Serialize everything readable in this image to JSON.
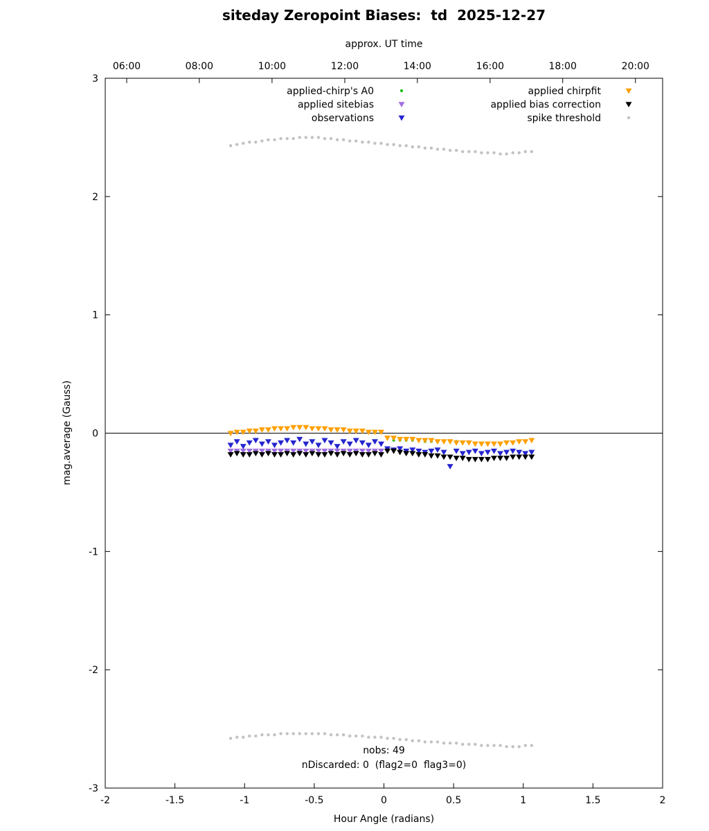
{
  "chart_data": {
    "type": "scatter",
    "title": "siteday Zeropoint Biases:  td  2025-12-27",
    "xlabel": "Hour Angle (radians)",
    "ylabel": "mag.average (Gauss)",
    "top_axis_label": "approx. UT time",
    "xlim": [
      -2,
      2
    ],
    "ylim": [
      -3,
      3
    ],
    "grid": false,
    "legend_position": "top-inside-two-columns",
    "zero_line": 0,
    "annotations": {
      "nobs": "nobs: 49",
      "ndiscarded": "nDiscarded: 0  (flag2=0  flag3=0)"
    },
    "x_ticks": [
      {
        "v": -2,
        "label": "-2"
      },
      {
        "v": -1.5,
        "label": "-1.5"
      },
      {
        "v": -1,
        "label": "-1"
      },
      {
        "v": -0.5,
        "label": "-0.5"
      },
      {
        "v": 0,
        "label": "0"
      },
      {
        "v": 0.5,
        "label": "0.5"
      },
      {
        "v": 1,
        "label": "1"
      },
      {
        "v": 1.5,
        "label": "1.5"
      },
      {
        "v": 2,
        "label": "2"
      }
    ],
    "y_ticks": [
      {
        "v": 3,
        "label": "3"
      },
      {
        "v": 2,
        "label": "2"
      },
      {
        "v": 1,
        "label": "1"
      },
      {
        "v": 0,
        "label": "0"
      },
      {
        "v": -1,
        "label": "-1"
      },
      {
        "v": -2,
        "label": "-2"
      },
      {
        "v": -3,
        "label": "-3"
      }
    ],
    "top_ticks": [
      {
        "v": -1.846,
        "label": "06:00"
      },
      {
        "v": -1.325,
        "label": "08:00"
      },
      {
        "v": -0.803,
        "label": "10:00"
      },
      {
        "v": -0.281,
        "label": "12:00"
      },
      {
        "v": 0.24,
        "label": "14:00"
      },
      {
        "v": 0.762,
        "label": "16:00"
      },
      {
        "v": 1.283,
        "label": "18:00"
      },
      {
        "v": 1.805,
        "label": "20:00"
      }
    ],
    "series": [
      {
        "name": "applied-chirp's A0",
        "marker": "dot",
        "dot_r": 2,
        "color": "#00bb00",
        "legend_col": 0,
        "legend_row": 0,
        "x": [
          0.07,
          0.115,
          0.16,
          0.205,
          0.25,
          0.295,
          0.34,
          0.385,
          0.43,
          0.475,
          0.52
        ],
        "y": [
          -0.06,
          -0.06,
          -0.06,
          -0.06,
          -0.06,
          -0.07,
          -0.07,
          -0.07,
          -0.07,
          -0.07,
          -0.07
        ]
      },
      {
        "name": "applied sitebias",
        "marker": "triangle",
        "color": "#9f6fe0",
        "legend_col": 0,
        "legend_row": 1,
        "x": [
          -1.1,
          -1.055,
          -1.01,
          -0.965,
          -0.92,
          -0.875,
          -0.83,
          -0.785,
          -0.74,
          -0.695,
          -0.65,
          -0.605,
          -0.56,
          -0.515,
          -0.47,
          -0.425,
          -0.38,
          -0.335,
          -0.29,
          -0.245,
          -0.2,
          -0.155,
          -0.11,
          -0.065,
          -0.02
        ],
        "y": [
          -0.15,
          -0.15,
          -0.15,
          -0.15,
          -0.15,
          -0.15,
          -0.15,
          -0.15,
          -0.15,
          -0.15,
          -0.15,
          -0.15,
          -0.15,
          -0.15,
          -0.15,
          -0.15,
          -0.15,
          -0.15,
          -0.15,
          -0.15,
          -0.15,
          -0.15,
          -0.15,
          -0.15,
          -0.15
        ]
      },
      {
        "name": "observations",
        "marker": "triangle",
        "color": "#2525cf",
        "legend_col": 0,
        "legend_row": 2,
        "x": [
          -1.1,
          -1.055,
          -1.01,
          -0.965,
          -0.92,
          -0.875,
          -0.83,
          -0.785,
          -0.74,
          -0.695,
          -0.65,
          -0.605,
          -0.56,
          -0.515,
          -0.47,
          -0.425,
          -0.38,
          -0.335,
          -0.29,
          -0.245,
          -0.2,
          -0.155,
          -0.11,
          -0.065,
          -0.02,
          0.025,
          0.07,
          0.115,
          0.16,
          0.205,
          0.25,
          0.295,
          0.34,
          0.385,
          0.43,
          0.475,
          0.52,
          0.565,
          0.61,
          0.655,
          0.7,
          0.745,
          0.79,
          0.835,
          0.88,
          0.925,
          0.97,
          1.015,
          1.06
        ],
        "y": [
          -0.1,
          -0.07,
          -0.11,
          -0.08,
          -0.06,
          -0.09,
          -0.07,
          -0.1,
          -0.08,
          -0.06,
          -0.08,
          -0.05,
          -0.09,
          -0.07,
          -0.1,
          -0.06,
          -0.08,
          -0.11,
          -0.07,
          -0.09,
          -0.06,
          -0.08,
          -0.1,
          -0.07,
          -0.09,
          -0.13,
          -0.14,
          -0.13,
          -0.15,
          -0.14,
          -0.15,
          -0.16,
          -0.15,
          -0.14,
          -0.16,
          -0.28,
          -0.15,
          -0.17,
          -0.16,
          -0.15,
          -0.17,
          -0.16,
          -0.15,
          -0.17,
          -0.16,
          -0.15,
          -0.16,
          -0.17,
          -0.16
        ]
      },
      {
        "name": "applied chirpfit",
        "marker": "triangle",
        "color": "#ffa000",
        "legend_col": 1,
        "legend_row": 0,
        "x": [
          -1.1,
          -1.055,
          -1.01,
          -0.965,
          -0.92,
          -0.875,
          -0.83,
          -0.785,
          -0.74,
          -0.695,
          -0.65,
          -0.605,
          -0.56,
          -0.515,
          -0.47,
          -0.425,
          -0.38,
          -0.335,
          -0.29,
          -0.245,
          -0.2,
          -0.155,
          -0.11,
          -0.065,
          -0.02,
          0.025,
          0.07,
          0.115,
          0.16,
          0.205,
          0.25,
          0.295,
          0.34,
          0.385,
          0.43,
          0.475,
          0.52,
          0.565,
          0.61,
          0.655,
          0.7,
          0.745,
          0.79,
          0.835,
          0.88,
          0.925,
          0.97,
          1.015,
          1.06
        ],
        "y": [
          0.0,
          0.01,
          0.01,
          0.02,
          0.02,
          0.03,
          0.03,
          0.04,
          0.04,
          0.04,
          0.05,
          0.05,
          0.05,
          0.04,
          0.04,
          0.04,
          0.03,
          0.03,
          0.03,
          0.02,
          0.02,
          0.02,
          0.01,
          0.01,
          0.01,
          -0.04,
          -0.04,
          -0.05,
          -0.05,
          -0.05,
          -0.06,
          -0.06,
          -0.06,
          -0.07,
          -0.07,
          -0.07,
          -0.08,
          -0.08,
          -0.08,
          -0.09,
          -0.09,
          -0.09,
          -0.09,
          -0.09,
          -0.08,
          -0.08,
          -0.07,
          -0.07,
          -0.06
        ]
      },
      {
        "name": "applied bias correction",
        "marker": "triangle",
        "color": "#000000",
        "legend_col": 1,
        "legend_row": 1,
        "x": [
          -1.1,
          -1.055,
          -1.01,
          -0.965,
          -0.92,
          -0.875,
          -0.83,
          -0.785,
          -0.74,
          -0.695,
          -0.65,
          -0.605,
          -0.56,
          -0.515,
          -0.47,
          -0.425,
          -0.38,
          -0.335,
          -0.29,
          -0.245,
          -0.2,
          -0.155,
          -0.11,
          -0.065,
          -0.02,
          0.025,
          0.07,
          0.115,
          0.16,
          0.205,
          0.25,
          0.295,
          0.34,
          0.385,
          0.43,
          0.475,
          0.52,
          0.565,
          0.61,
          0.655,
          0.7,
          0.745,
          0.79,
          0.835,
          0.88,
          0.925,
          0.97,
          1.015,
          1.06
        ],
        "y": [
          -0.18,
          -0.17,
          -0.18,
          -0.18,
          -0.17,
          -0.18,
          -0.17,
          -0.18,
          -0.18,
          -0.17,
          -0.18,
          -0.17,
          -0.18,
          -0.17,
          -0.18,
          -0.18,
          -0.17,
          -0.18,
          -0.17,
          -0.18,
          -0.17,
          -0.18,
          -0.18,
          -0.17,
          -0.18,
          -0.15,
          -0.15,
          -0.16,
          -0.17,
          -0.17,
          -0.18,
          -0.18,
          -0.19,
          -0.19,
          -0.2,
          -0.2,
          -0.21,
          -0.21,
          -0.22,
          -0.22,
          -0.22,
          -0.22,
          -0.21,
          -0.21,
          -0.21,
          -0.2,
          -0.2,
          -0.2,
          -0.2
        ]
      },
      {
        "name": "spike threshold",
        "marker": "dot",
        "dot_r": 2.2,
        "color": "#c2c2c2",
        "legend_col": 1,
        "legend_row": 2,
        "x": [
          -1.1,
          -1.055,
          -1.01,
          -0.965,
          -0.92,
          -0.875,
          -0.83,
          -0.785,
          -0.74,
          -0.695,
          -0.65,
          -0.605,
          -0.56,
          -0.515,
          -0.47,
          -0.425,
          -0.38,
          -0.335,
          -0.29,
          -0.245,
          -0.2,
          -0.155,
          -0.11,
          -0.065,
          -0.02,
          0.025,
          0.07,
          0.115,
          0.16,
          0.205,
          0.25,
          0.295,
          0.34,
          0.385,
          0.43,
          0.475,
          0.52,
          0.565,
          0.61,
          0.655,
          0.7,
          0.745,
          0.79,
          0.835,
          0.88,
          0.925,
          0.97,
          1.015,
          1.06,
          -1.1,
          -1.055,
          -1.01,
          -0.965,
          -0.92,
          -0.875,
          -0.83,
          -0.785,
          -0.74,
          -0.695,
          -0.65,
          -0.605,
          -0.56,
          -0.515,
          -0.47,
          -0.425,
          -0.38,
          -0.335,
          -0.29,
          -0.245,
          -0.2,
          -0.155,
          -0.11,
          -0.065,
          -0.02,
          0.025,
          0.07,
          0.115,
          0.16,
          0.205,
          0.25,
          0.295,
          0.34,
          0.385,
          0.43,
          0.475,
          0.52,
          0.565,
          0.61,
          0.655,
          0.7,
          0.745,
          0.79,
          0.835,
          0.88,
          0.925,
          0.97,
          1.015,
          1.06
        ],
        "y": [
          2.43,
          2.44,
          2.45,
          2.46,
          2.46,
          2.47,
          2.48,
          2.48,
          2.49,
          2.49,
          2.49,
          2.5,
          2.5,
          2.5,
          2.5,
          2.49,
          2.49,
          2.48,
          2.48,
          2.47,
          2.47,
          2.46,
          2.46,
          2.45,
          2.45,
          2.44,
          2.44,
          2.43,
          2.43,
          2.42,
          2.42,
          2.41,
          2.41,
          2.4,
          2.4,
          2.39,
          2.39,
          2.38,
          2.38,
          2.38,
          2.37,
          2.37,
          2.37,
          2.36,
          2.36,
          2.37,
          2.37,
          2.38,
          2.38,
          -2.58,
          -2.57,
          -2.57,
          -2.56,
          -2.56,
          -2.55,
          -2.55,
          -2.55,
          -2.54,
          -2.54,
          -2.54,
          -2.54,
          -2.54,
          -2.54,
          -2.54,
          -2.54,
          -2.55,
          -2.55,
          -2.55,
          -2.56,
          -2.56,
          -2.56,
          -2.57,
          -2.57,
          -2.57,
          -2.58,
          -2.58,
          -2.59,
          -2.59,
          -2.6,
          -2.6,
          -2.61,
          -2.61,
          -2.61,
          -2.62,
          -2.62,
          -2.62,
          -2.63,
          -2.63,
          -2.63,
          -2.64,
          -2.64,
          -2.64,
          -2.64,
          -2.65,
          -2.65,
          -2.65,
          -2.64,
          -2.64
        ]
      }
    ]
  }
}
